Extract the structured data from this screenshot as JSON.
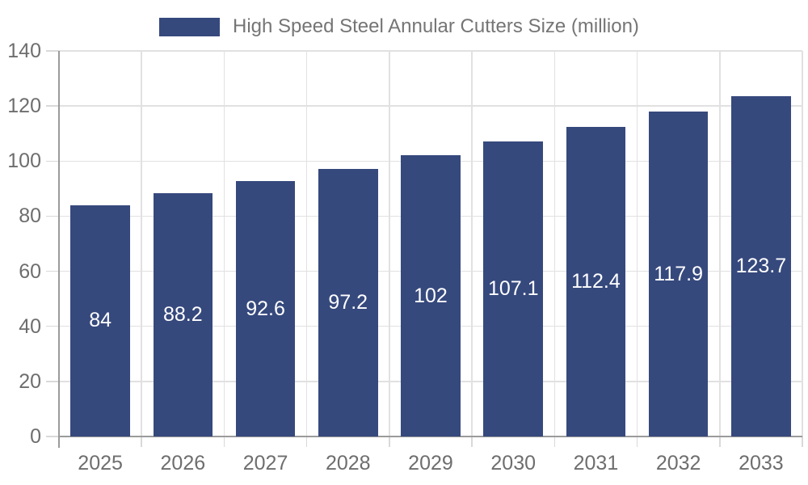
{
  "chart_data": {
    "type": "bar",
    "title": "High Speed Steel Annular Cutters Size (million)",
    "categories": [
      "2025",
      "2026",
      "2027",
      "2028",
      "2029",
      "2030",
      "2031",
      "2032",
      "2033"
    ],
    "values": [
      84,
      88.2,
      92.6,
      97.2,
      102,
      107.1,
      112.4,
      117.9,
      123.7
    ],
    "value_labels": [
      "84",
      "88.2",
      "92.6",
      "97.2",
      "102",
      "107.1",
      "112.4",
      "117.9",
      "123.7"
    ],
    "xlabel": "",
    "ylabel": "",
    "ylim": [
      0,
      140
    ],
    "ytick_interval": 20,
    "ytick_labels": [
      "0",
      "20",
      "40",
      "60",
      "80",
      "100",
      "120",
      "140"
    ],
    "grid": true,
    "legend_position": "top",
    "colors": {
      "bar": "#36497d",
      "bar_label": "#ffffff",
      "title_text": "#757575",
      "axis_text": "#6e6e6e",
      "gridline": "#e1e1e1",
      "axis_line": "#9b9b9b",
      "tick_mark": "#d9d9d9",
      "background": "#ffffff"
    }
  }
}
